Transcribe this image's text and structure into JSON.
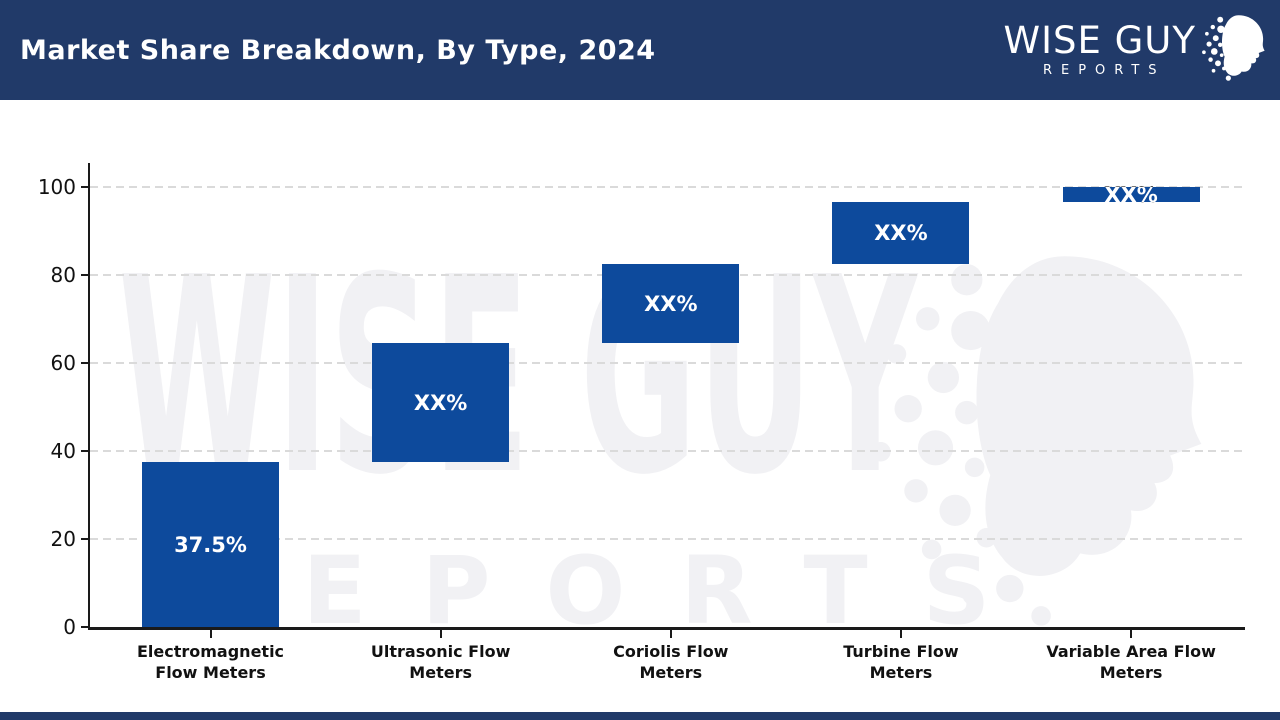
{
  "header": {
    "title": "Market Share Breakdown, By Type, 2024",
    "logo": {
      "primary": "WISE GUY",
      "secondary": "REPORTS"
    }
  },
  "watermark": {
    "primary": "WISE GUY",
    "secondary": "REPORTS"
  },
  "chart_data": {
    "type": "bar",
    "subtype": "floating-waterfall",
    "title": "Market Share Breakdown, By Type, 2024",
    "categories": [
      "Electromagnetic Flow Meters",
      "Ultrasonic Flow Meters",
      "Coriolis Flow Meters",
      "Turbine Flow Meters",
      "Variable Area Flow Meters"
    ],
    "category_label_lines": [
      [
        "Electromagnetic",
        "Flow Meters"
      ],
      [
        "Ultrasonic Flow",
        "Meters"
      ],
      [
        "Coriolis Flow",
        "Meters"
      ],
      [
        "Turbine Flow",
        "Meters"
      ],
      [
        "Variable Area Flow",
        "Meters"
      ]
    ],
    "segments": [
      {
        "category": "Electromagnetic Flow Meters",
        "from": 0,
        "to": 37.5,
        "label": "37.5%"
      },
      {
        "category": "Ultrasonic Flow Meters",
        "from": 37.5,
        "to": 64.5,
        "label": "XX%"
      },
      {
        "category": "Coriolis Flow Meters",
        "from": 64.5,
        "to": 82.5,
        "label": "XX%"
      },
      {
        "category": "Turbine Flow Meters",
        "from": 82.5,
        "to": 96.5,
        "label": "XX%"
      },
      {
        "category": "Variable Area Flow Meters",
        "from": 96.5,
        "to": 100,
        "label": "XX%"
      }
    ],
    "xlabel": "",
    "ylabel": "",
    "ylim": [
      0,
      100
    ],
    "yticks": [
      0,
      20,
      40,
      60,
      80,
      100
    ],
    "grid": "horizontal-dashed",
    "legend": "none"
  },
  "colors": {
    "header_bg": "#213a69",
    "footer_bg": "#213a69",
    "bar": "#0d4a9c",
    "bar_label": "#ffffff",
    "grid": "#dadada",
    "axis": "#1a1a1a",
    "watermark": "#f1f1f4"
  }
}
